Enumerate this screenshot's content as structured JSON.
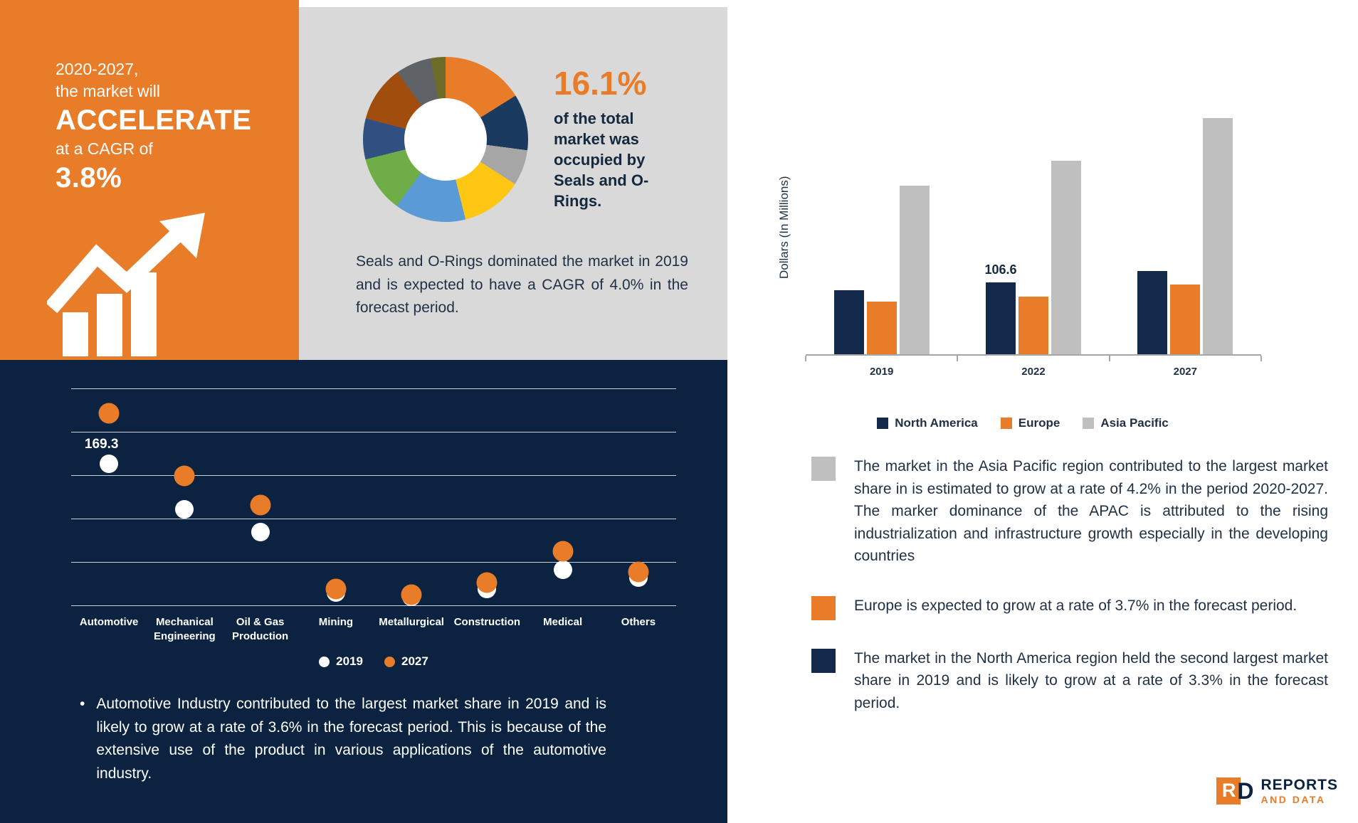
{
  "cagr_panel": {
    "line1": "2020-2027,",
    "line2": "the market will",
    "line3": "ACCELERATE",
    "line4": "at a CAGR of",
    "line5": "3.8%"
  },
  "donut_panel": {
    "highlight_value": "16.1%",
    "highlight_caption": "of the total market was occupied by Seals and O-Rings.",
    "paragraph": "Seals and O-Rings dominated the market in 2019 and is expected to have a CAGR of 4.0% in the forecast period."
  },
  "industry_panel": {
    "bullet_char": "•",
    "bullet": "Automotive Industry contributed to the largest market share in 2019 and is likely to grow at a rate of 3.6% in the forecast period. This is because of the extensive use of the product in various applications of the automotive industry."
  },
  "region_panel": {
    "y_axis_label": "Dollars (In Millions)",
    "bullets": [
      {
        "color": "#BFBFBF",
        "text": "The market in the Asia Pacific region contributed to the largest market share in is estimated to grow at a rate of 4.2% in the period 2020-2027. The marker dominance of the APAC is attributed to the rising industrialization and infrastructure growth especially in the developing countries"
      },
      {
        "color": "#E87C28",
        "text": "Europe is expected to grow at a rate of 3.7% in the forecast period."
      },
      {
        "color": "#13294B",
        "text": "The market in the North America region held the second largest market share in 2019 and is likely to grow at a rate of 3.3% in the forecast period."
      }
    ]
  },
  "logo": {
    "mark_r": "R",
    "mark_d": "D",
    "line1": "REPORTS",
    "line2": "AND DATA"
  },
  "chart_data": [
    {
      "id": "product-donut",
      "type": "pie",
      "title": "Share of total market by product",
      "segments": [
        {
          "label": "Seals and O-Rings",
          "value": 16.1,
          "color": "#E87C28"
        },
        {
          "label": "segment-2",
          "value": 11.0,
          "color": "#1B3A5F"
        },
        {
          "label": "segment-3",
          "value": 7.0,
          "color": "#A6A6A6"
        },
        {
          "label": "segment-4",
          "value": 12.0,
          "color": "#FFC613"
        },
        {
          "label": "segment-5",
          "value": 14.0,
          "color": "#5B9BD5"
        },
        {
          "label": "segment-6",
          "value": 11.0,
          "color": "#6FAD46"
        },
        {
          "label": "segment-7",
          "value": 8.0,
          "color": "#2F5081"
        },
        {
          "label": "segment-8",
          "value": 11.0,
          "color": "#A14D0E"
        },
        {
          "label": "segment-9",
          "value": 7.0,
          "color": "#5F6368"
        },
        {
          "label": "segment-10",
          "value": 2.9,
          "color": "#6E6A28"
        }
      ],
      "labeled_segment": {
        "label": "Seals and O-Rings",
        "text": "16.1%"
      }
    },
    {
      "id": "industry-dot-plot",
      "type": "scatter",
      "title": "Market size by industry, 2019 vs 2027",
      "categories": [
        "Automotive",
        "Mechanical\nEngineering",
        "Oil & Gas\nProduction",
        "Mining",
        "Metallurgical",
        "Construction",
        "Medical",
        "Others"
      ],
      "series": [
        {
          "name": "2019",
          "color": "#FFFFFF",
          "values": [
            169.3,
            115,
            88,
            15,
            10,
            20,
            43,
            33
          ]
        },
        {
          "name": "2027",
          "color": "#E87C28",
          "values": [
            230,
            155,
            120,
            20,
            13,
            27,
            65,
            40
          ]
        }
      ],
      "ylim": [
        0,
        260
      ],
      "gridlines": 6,
      "grid": true,
      "legend_position": "bottom",
      "labeled_point": {
        "series": "2019",
        "category": "Automotive",
        "text": "169.3"
      }
    },
    {
      "id": "region-bars",
      "type": "bar",
      "title": "Regional market size",
      "categories": [
        "2019",
        "2022",
        "2027"
      ],
      "series": [
        {
          "name": "North America",
          "color": "#13294B",
          "values": [
            95,
            106.6,
            123
          ]
        },
        {
          "name": "Europe",
          "color": "#E87C28",
          "values": [
            78,
            85,
            103
          ]
        },
        {
          "name": "Asia Pacific",
          "color": "#BFBFBF",
          "values": [
            250,
            287,
            350
          ]
        }
      ],
      "xlabel": "",
      "ylabel": "Dollars (In Millions)",
      "ylim": [
        0,
        380
      ],
      "grid": false,
      "legend_position": "bottom",
      "labeled_point": {
        "series": "North America",
        "category": "2022",
        "text": "106.6"
      }
    }
  ]
}
